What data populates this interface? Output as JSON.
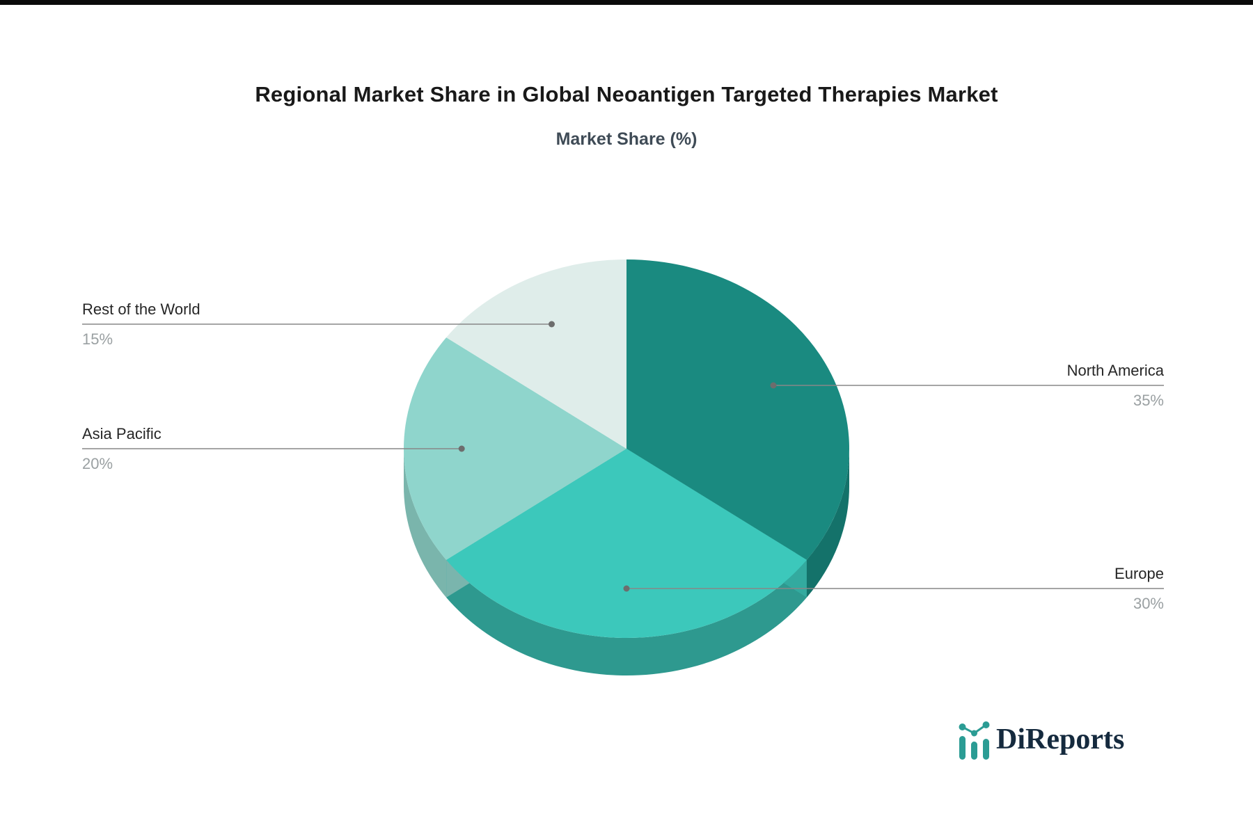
{
  "chart_data": {
    "type": "pie",
    "title": "Regional Market Share in Global Neoantigen Targeted Therapies Market",
    "subtitle": "Market Share (%)",
    "unit": "%",
    "effect_3d": true,
    "start_angle_deg": 0,
    "direction": "clockwise",
    "legend_position": "none",
    "slices": [
      {
        "label": "North America",
        "value": 35,
        "pct_label": "35%",
        "color": "#1A8A80",
        "side_color": "#14726A"
      },
      {
        "label": "Europe",
        "value": 30,
        "pct_label": "30%",
        "color": "#3CC8BB",
        "side_color": "#2E998F"
      },
      {
        "label": "Asia Pacific",
        "value": 20,
        "pct_label": "20%",
        "color": "#8FD5CC",
        "side_color": "#7AB5AC"
      },
      {
        "label": "Rest of the World",
        "value": 15,
        "pct_label": "15%",
        "color": "#DFEDEA",
        "side_color": "#C3D8D3"
      }
    ],
    "label_line_color": "#878787",
    "label_dot_color": "#6d6d6d",
    "label_text_color": "#262626",
    "pct_text_color": "#9aa0a2"
  },
  "brand": {
    "name": "DiReports",
    "icon": "bar-chart-trend-icon",
    "accent_color": "#2B9C94",
    "text_color": "#152a3e"
  }
}
